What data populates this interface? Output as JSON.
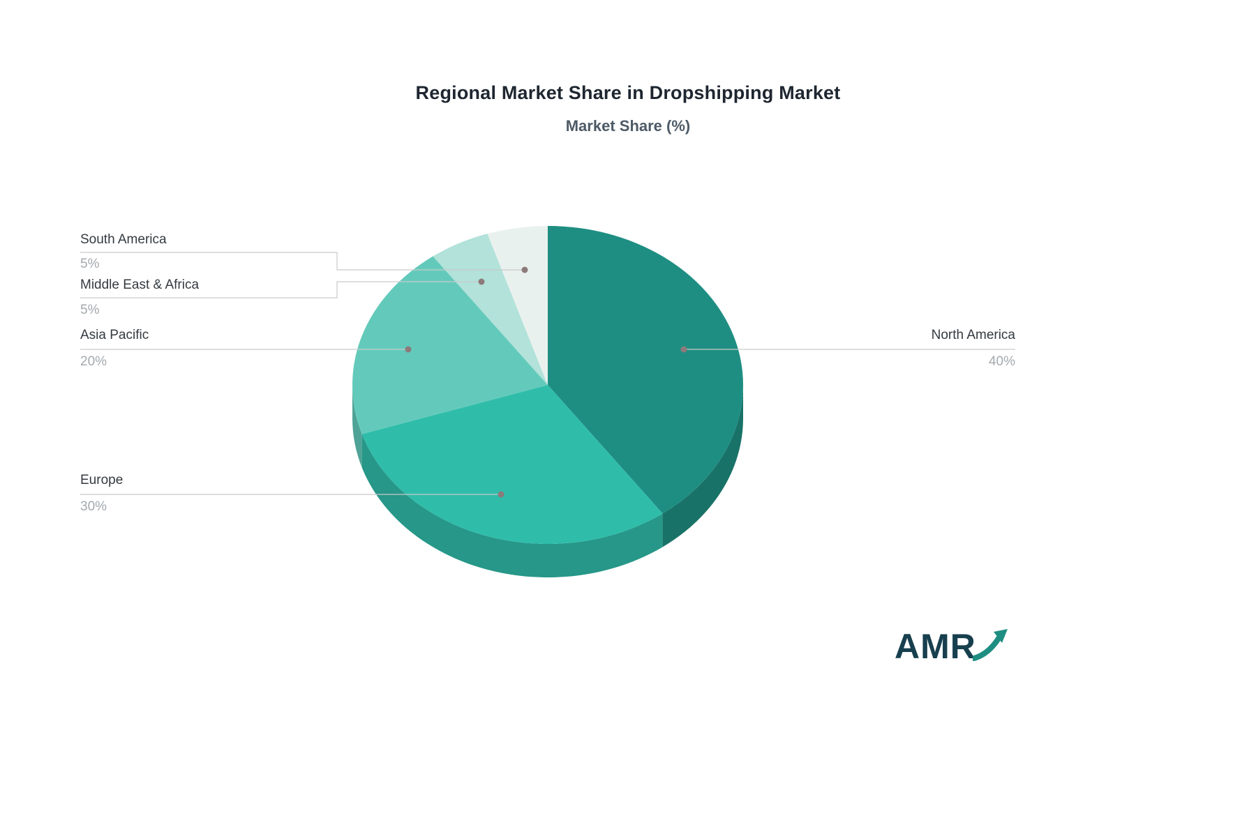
{
  "title": "Regional Market Share in Dropshipping Market",
  "subtitle": "Market Share (%)",
  "logo": {
    "text": "AMR"
  },
  "colors": {
    "accent_dark_teal": "#1f8e82",
    "leader_line": "#c9c9c9",
    "leader_dot": "#8d7a7a",
    "label_text": "#343a40",
    "value_text": "#a3a9ae"
  },
  "chart_data": {
    "type": "pie",
    "style": "3d",
    "title": "Regional Market Share in Dropshipping Market",
    "subtitle": "Market Share (%)",
    "unit": "%",
    "direction": "clockwise",
    "start_angle_deg": 0,
    "legend": "none",
    "slices": [
      {
        "label": "North America",
        "value": 40,
        "display": "40%",
        "color": "#1f8e82"
      },
      {
        "label": "Europe",
        "value": 30,
        "display": "30%",
        "color": "#2fbdaa"
      },
      {
        "label": "Asia Pacific",
        "value": 20,
        "display": "20%",
        "color": "#63cabb"
      },
      {
        "label": "Middle East & Africa",
        "value": 5,
        "display": "5%",
        "color": "#b2e2da"
      },
      {
        "label": "South America",
        "value": 5,
        "display": "5%",
        "color": "#e9f1ef"
      }
    ]
  }
}
